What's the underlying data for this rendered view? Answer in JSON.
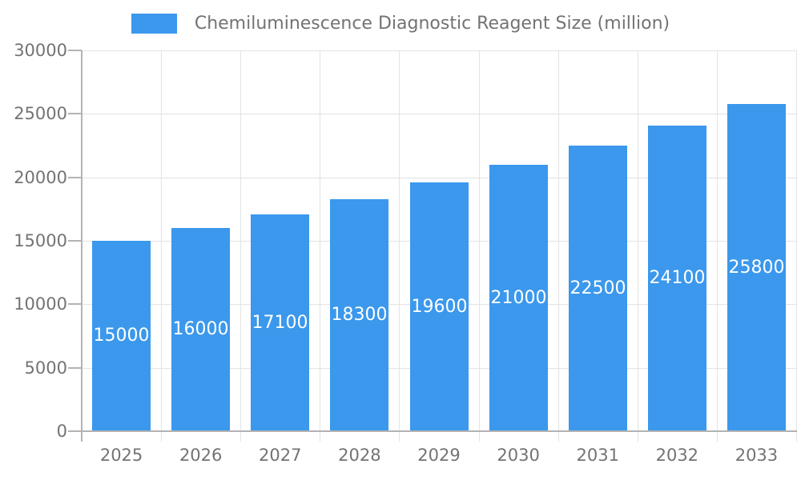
{
  "chart_data": {
    "type": "bar",
    "title": "Chemiluminescence Diagnostic Reagent Size (million)",
    "categories": [
      "2025",
      "2026",
      "2027",
      "2028",
      "2029",
      "2030",
      "2031",
      "2032",
      "2033"
    ],
    "values": [
      15000,
      16000,
      17100,
      18300,
      19600,
      21000,
      22500,
      24100,
      25800
    ],
    "xlabel": "",
    "ylabel": "",
    "ylim": [
      0,
      30000
    ],
    "yticks": [
      0,
      5000,
      10000,
      15000,
      20000,
      25000,
      30000
    ],
    "grid": true,
    "legend_position": "top",
    "value_label_position": "inside-center",
    "colors": {
      "bar": "#3b98ec",
      "value_label": "#ffffff",
      "axis_text": "#737373",
      "axis_line": "#b3b3b3",
      "gridline": "#e3e3e3",
      "background": "#ffffff"
    }
  }
}
